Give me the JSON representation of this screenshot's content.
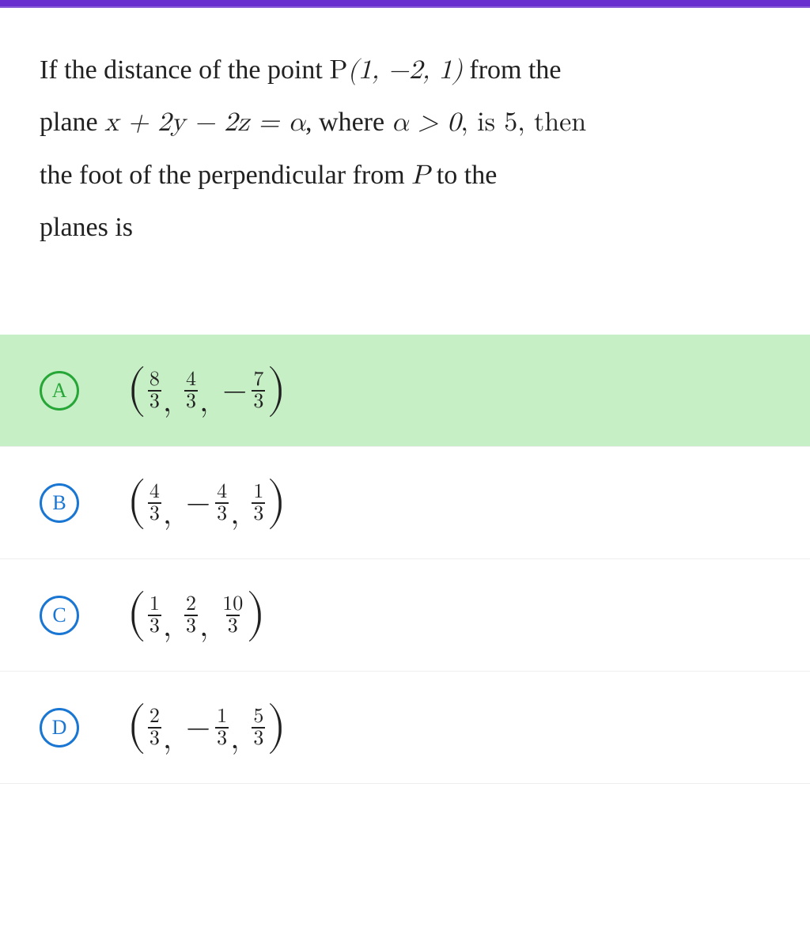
{
  "topbar_color": "#6a2fcf",
  "question": {
    "line1_pre": "If the distance of the point ",
    "point": "P(1, −2, 1)",
    "line1_post": " from the",
    "line2_pre": "plane ",
    "plane_eq": "x + 2y − 2z = α",
    "line2_mid": ", where ",
    "alpha_cond": "α > 0",
    "line2_post": ", is 5, then",
    "line3": "the foot of the perpendicular from ",
    "line3_math": "P",
    "line3_post": " to the",
    "line4": "planes is"
  },
  "options": [
    {
      "letter": "A",
      "correct": true,
      "parts": [
        {
          "n": "8",
          "d": "3"
        },
        {
          "n": "4",
          "d": "3"
        },
        {
          "neg": true,
          "n": "7",
          "d": "3"
        }
      ]
    },
    {
      "letter": "B",
      "correct": false,
      "parts": [
        {
          "n": "4",
          "d": "3"
        },
        {
          "neg": true,
          "n": "4",
          "d": "3"
        },
        {
          "n": "1",
          "d": "3"
        }
      ]
    },
    {
      "letter": "C",
      "correct": false,
      "parts": [
        {
          "n": "1",
          "d": "3"
        },
        {
          "n": "2",
          "d": "3"
        },
        {
          "n": "10",
          "d": "3"
        }
      ]
    },
    {
      "letter": "D",
      "correct": false,
      "parts": [
        {
          "n": "2",
          "d": "3"
        },
        {
          "neg": true,
          "n": "1",
          "d": "3"
        },
        {
          "n": "5",
          "d": "3"
        }
      ]
    }
  ],
  "colors": {
    "correct_bg": "#c7efc6",
    "correct_ring": "#26a636",
    "option_ring": "#1976d2",
    "text": "#212121",
    "divider": "#eeeeee"
  }
}
